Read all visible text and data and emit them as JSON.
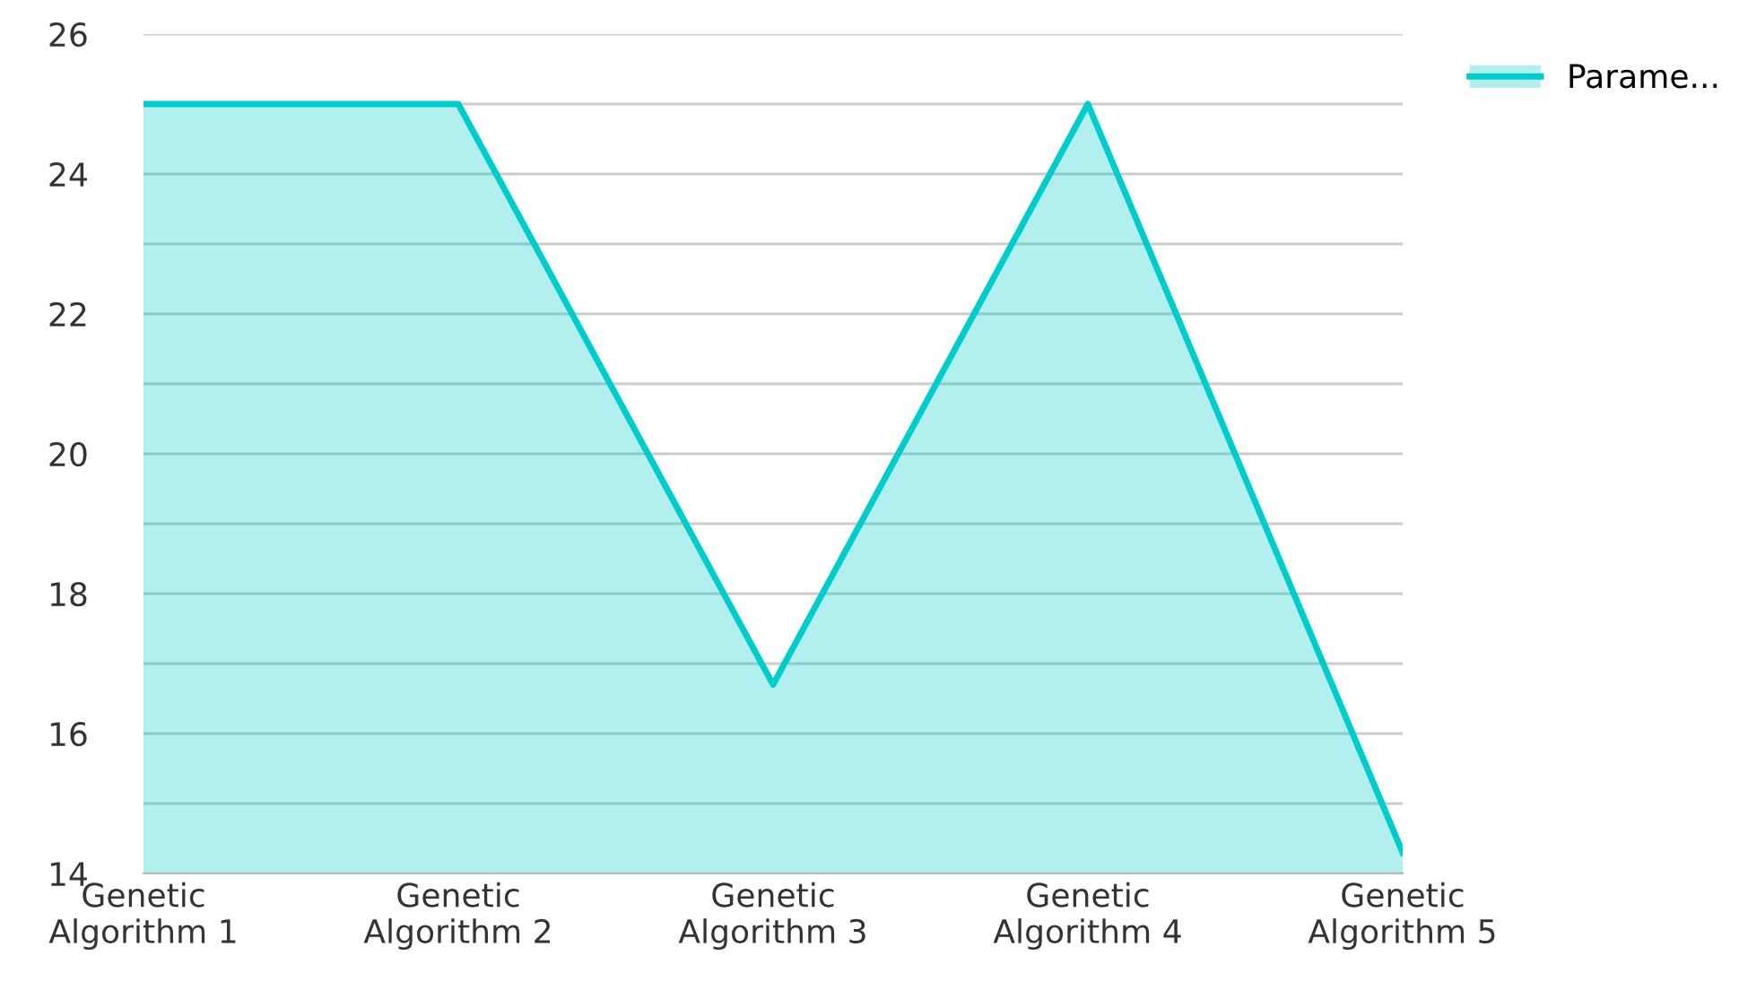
{
  "chart_data": {
    "type": "area",
    "categories": [
      "Genetic\nAlgorithm 1",
      "Genetic\nAlgorithm 2",
      "Genetic\nAlgorithm 3",
      "Genetic\nAlgorithm 4",
      "Genetic\nAlgorithm 5"
    ],
    "series": [
      {
        "name": "Parame...",
        "color": "#00cccc",
        "values": [
          25,
          25,
          16.7,
          25,
          14.3
        ]
      }
    ],
    "ylim": [
      14,
      26
    ],
    "yticks": [
      14,
      {
        "value": 15,
        "label": null
      },
      16,
      {
        "value": 17,
        "label": null
      },
      18,
      {
        "value": 19,
        "label": null
      },
      20,
      {
        "value": 21,
        "label": null
      },
      22,
      {
        "value": 23,
        "label": null
      },
      24,
      {
        "value": 25,
        "label": null
      },
      26
    ],
    "grid": "y",
    "legend": "top right"
  }
}
